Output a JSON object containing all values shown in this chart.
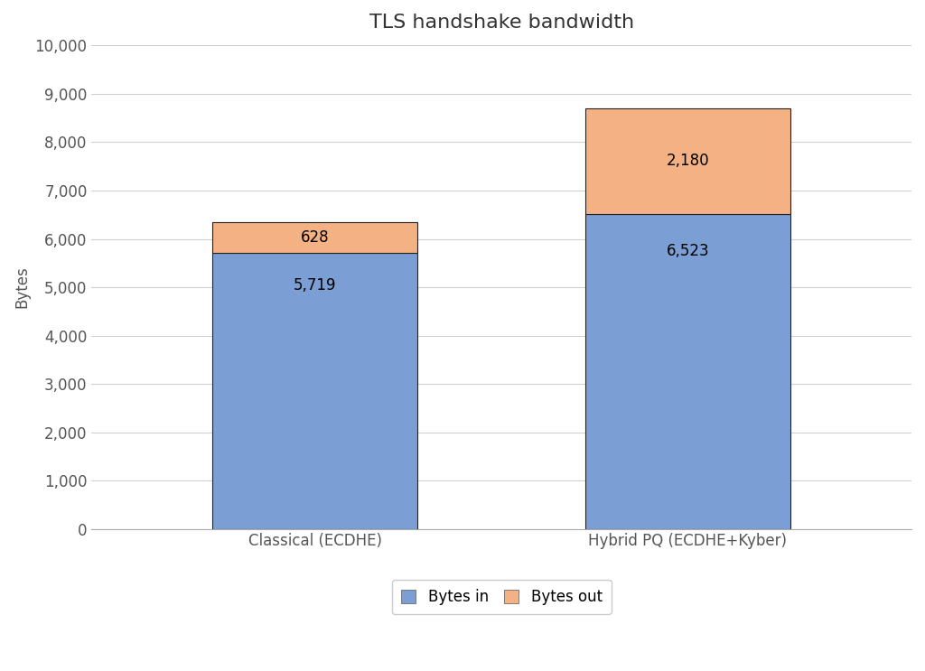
{
  "title": "TLS handshake bandwidth",
  "categories": [
    "Classical (ECDHE)",
    "Hybrid PQ (ECDHE+Kyber)"
  ],
  "bytes_in": [
    5719,
    6523
  ],
  "bytes_out": [
    628,
    2180
  ],
  "bytes_in_color": "#7b9fd4",
  "bytes_out_color": "#f4b183",
  "ylabel": "Bytes",
  "ylim": [
    0,
    10000
  ],
  "yticks": [
    0,
    1000,
    2000,
    3000,
    4000,
    5000,
    6000,
    7000,
    8000,
    9000,
    10000
  ],
  "ytick_labels": [
    "0",
    "1,000",
    "2,000",
    "3,000",
    "4,000",
    "5,000",
    "6,000",
    "7,000",
    "8,000",
    "9,000",
    "10,000"
  ],
  "legend_labels": [
    "Bytes in",
    "Bytes out"
  ],
  "bar_width": 0.55,
  "title_fontsize": 16,
  "label_fontsize": 12,
  "tick_fontsize": 12,
  "annotation_fontsize": 12,
  "background_color": "#ffffff",
  "grid_color": "#d0d0d0",
  "bar_edge_color": "#222222"
}
